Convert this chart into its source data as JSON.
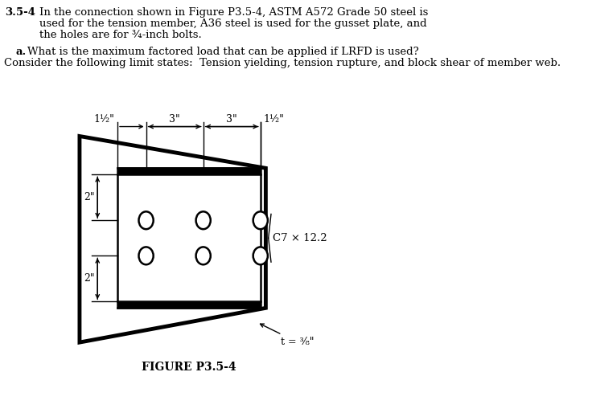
{
  "background_color": "#ffffff",
  "text_color": "#000000",
  "title_text": "3.5-4",
  "problem_text_line1": "In the connection shown in Figure P3.5-4, ASTM A572 Grade 50 steel is",
  "problem_text_line2": "used for the tension member, A36 steel is used for the gusset plate, and",
  "problem_text_line3": "the holes are for ¾-inch bolts.",
  "question_a": "a.",
  "question_text": "What is the maximum factored load that can be applied if LRFD is used?",
  "consider_text": "Consider the following limit states:  Tension yielding, tension rupture, and block shear of member web.",
  "figure_label": "FIGURE P3.5-4",
  "C_label": "C7 × 12.2",
  "dim_1half_L": "1½\"",
  "dim_3a": "3\"",
  "dim_3b": "3\"",
  "dim_1half_R": "1½\"",
  "dim_2_top": "2\"",
  "dim_2_bot": "2\"",
  "t_label": "t = ³⁄₈\""
}
